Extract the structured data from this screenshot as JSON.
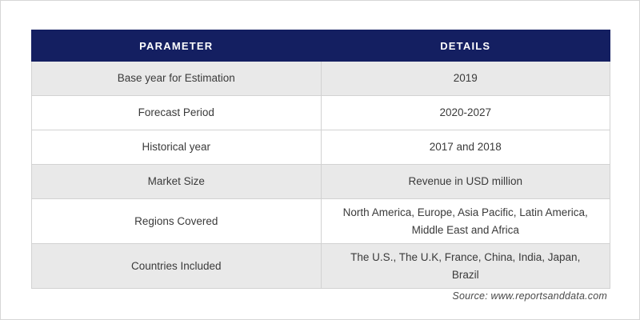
{
  "table": {
    "headers": {
      "parameter": "PARAMETER",
      "details": "DETAILS"
    },
    "rows": [
      {
        "parameter": "Base year for Estimation",
        "details": "2019"
      },
      {
        "parameter": "Forecast Period",
        "details": "2020-2027"
      },
      {
        "parameter": "Historical year",
        "details": "2017 and 2018"
      },
      {
        "parameter": "Market Size",
        "details": "Revenue in USD million"
      },
      {
        "parameter": "Regions Covered",
        "details": "North America, Europe, Asia Pacific, Latin America, Middle East and Africa"
      },
      {
        "parameter": "Countries Included",
        "details": "The U.S., The  U.K, France, China, India, Japan, Brazil"
      }
    ]
  },
  "source": "Source: www.reportsanddata.com",
  "colors": {
    "header_bg": "#141f61",
    "header_text": "#ffffff",
    "shaded_row_bg": "#e9e9e9",
    "border": "#d2d2d2"
  }
}
